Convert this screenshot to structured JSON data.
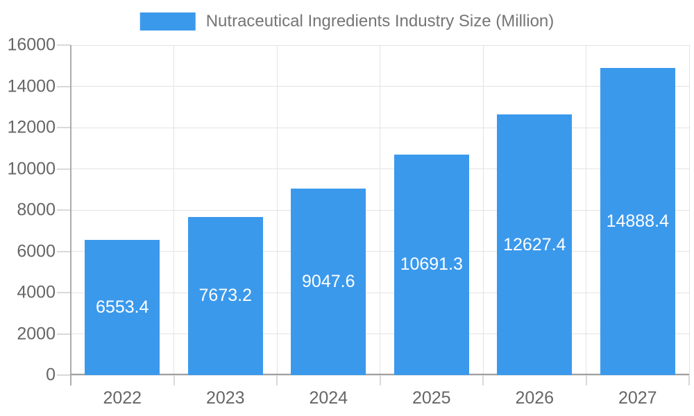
{
  "chart_data": {
    "type": "bar",
    "title": "Nutraceutical Ingredients Industry Size (Million)",
    "categories": [
      "2022",
      "2023",
      "2024",
      "2025",
      "2026",
      "2027"
    ],
    "values": [
      6553.4,
      7673.2,
      9047.6,
      10691.3,
      12627.4,
      14888.4
    ],
    "value_labels": [
      "6553.4",
      "7673.2",
      "9047.6",
      "10691.3",
      "12627.4",
      "14888.4"
    ],
    "xlabel": "",
    "ylabel": "",
    "ylim": [
      0,
      16000
    ],
    "ytick_step": 2000,
    "yticks": [
      0,
      2000,
      4000,
      6000,
      8000,
      10000,
      12000,
      14000,
      16000
    ],
    "grid": true,
    "legend_position": "top"
  },
  "colors": {
    "bar": "#3B99EC",
    "background": "#ffffff",
    "grid": "#e3e3e3",
    "axis": "#9e9e9e",
    "tick": "#d9d9d9",
    "axis_label_text": "#666666",
    "legend_text": "#757575",
    "value_label_text": "#ffffff"
  }
}
